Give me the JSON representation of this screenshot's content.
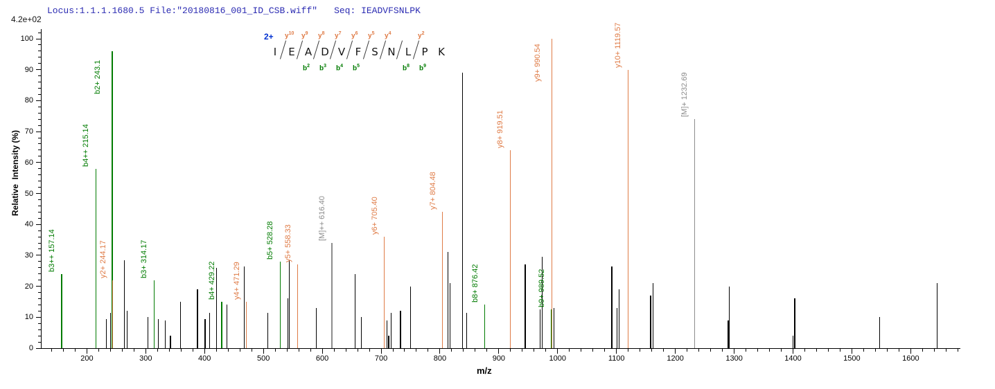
{
  "header": {
    "locus_file": "Locus:1.1.1.1680.5 File:\"20180816_001_ID_CSB.wiff\"",
    "seq": "Seq: IEADVFSNLPK",
    "max_intensity": "4.2e+02"
  },
  "peptide": {
    "charge": "2+",
    "residues": [
      "I",
      "E",
      "A",
      "D",
      "V",
      "F",
      "S",
      "N",
      "L",
      "P",
      "K"
    ],
    "cleavages": [
      {
        "after": 0,
        "y": "y10",
        "b": ""
      },
      {
        "after": 1,
        "y": "y9",
        "b": "b2"
      },
      {
        "after": 2,
        "y": "y8",
        "b": "b3"
      },
      {
        "after": 3,
        "y": "y7",
        "b": "b4"
      },
      {
        "after": 4,
        "y": "y6",
        "b": "b5"
      },
      {
        "after": 5,
        "y": "y5",
        "b": ""
      },
      {
        "after": 6,
        "y": "y4",
        "b": ""
      },
      {
        "after": 7,
        "y": "",
        "b": "b8"
      },
      {
        "after": 8,
        "y": "y2",
        "b": "b9"
      }
    ]
  },
  "chart_data": {
    "type": "bar",
    "subtype": "ms2-fragment-spectrum",
    "title": "",
    "xlabel": "m/z",
    "ylabel": "Relative  Intensity (%)",
    "xlim": [
      123,
      1682
    ],
    "ylim": [
      0,
      100
    ],
    "x_major_ticks": [
      200,
      300,
      400,
      500,
      600,
      700,
      800,
      900,
      1000,
      1100,
      1200,
      1300,
      1400,
      1500,
      1600
    ],
    "x_minor_step": 20,
    "y_major_ticks": [
      0,
      10,
      20,
      30,
      40,
      50,
      60,
      70,
      80,
      90,
      100
    ],
    "y_minor_step": 2,
    "grid": false,
    "series_colors": {
      "b": "#007b00",
      "y": "#df7b46",
      "precursor": "#8c8c8c",
      "unassigned": "#000000"
    },
    "peaks": [
      {
        "mz": 157.14,
        "intensity": 24,
        "series": "b",
        "label": "b3++ 157.14"
      },
      {
        "mz": 215.14,
        "intensity": 58,
        "series": "b",
        "label": "b4++ 215.14"
      },
      {
        "mz": 233,
        "intensity": 9.5,
        "series": "unassigned"
      },
      {
        "mz": 240,
        "intensity": 11.5,
        "series": "unassigned"
      },
      {
        "mz": 243.1,
        "intensity": 96,
        "series": "b",
        "label": "b2+ 243.1"
      },
      {
        "mz": 244.17,
        "intensity": 22,
        "series": "y",
        "label": "y2+ 244.17"
      },
      {
        "mz": 264,
        "intensity": 28.5,
        "series": "unassigned"
      },
      {
        "mz": 268,
        "intensity": 12,
        "series": "unassigned"
      },
      {
        "mz": 304,
        "intensity": 10,
        "series": "unassigned"
      },
      {
        "mz": 314.17,
        "intensity": 22,
        "series": "b",
        "label": "b3+ 314.17"
      },
      {
        "mz": 321,
        "intensity": 9.5,
        "series": "unassigned"
      },
      {
        "mz": 333,
        "intensity": 9,
        "series": "unassigned"
      },
      {
        "mz": 342,
        "intensity": 4,
        "series": "unassigned"
      },
      {
        "mz": 359,
        "intensity": 15,
        "series": "unassigned"
      },
      {
        "mz": 388,
        "intensity": 19,
        "series": "unassigned"
      },
      {
        "mz": 401,
        "intensity": 9.5,
        "series": "unassigned"
      },
      {
        "mz": 409,
        "intensity": 11.5,
        "series": "unassigned"
      },
      {
        "mz": 420,
        "intensity": 26,
        "series": "unassigned"
      },
      {
        "mz": 429.22,
        "intensity": 15,
        "series": "b",
        "label": "b4+ 429.22"
      },
      {
        "mz": 438,
        "intensity": 14,
        "series": "unassigned"
      },
      {
        "mz": 467,
        "intensity": 26.5,
        "series": "unassigned"
      },
      {
        "mz": 471.29,
        "intensity": 15,
        "series": "y",
        "label": "y4+ 471.29"
      },
      {
        "mz": 507,
        "intensity": 11.5,
        "series": "unassigned"
      },
      {
        "mz": 528.28,
        "intensity": 28,
        "series": "b",
        "label": "b5+ 528.28"
      },
      {
        "mz": 542,
        "intensity": 16,
        "series": "unassigned"
      },
      {
        "mz": 544,
        "intensity": 28.5,
        "series": "unassigned"
      },
      {
        "mz": 558.33,
        "intensity": 27,
        "series": "y",
        "label": "y5+ 558.33"
      },
      {
        "mz": 590,
        "intensity": 13,
        "series": "unassigned"
      },
      {
        "mz": 616.4,
        "intensity": 34,
        "series": "precursor",
        "label": "[M]++ 616.40"
      },
      {
        "mz": 656,
        "intensity": 24,
        "series": "unassigned"
      },
      {
        "mz": 666,
        "intensity": 10,
        "series": "unassigned"
      },
      {
        "mz": 705.4,
        "intensity": 36,
        "series": "y",
        "label": "y6+ 705.40"
      },
      {
        "mz": 710,
        "intensity": 9,
        "series": "unassigned"
      },
      {
        "mz": 713,
        "intensity": 4,
        "series": "unassigned"
      },
      {
        "mz": 717,
        "intensity": 11.5,
        "series": "unassigned"
      },
      {
        "mz": 733,
        "intensity": 12,
        "series": "unassigned"
      },
      {
        "mz": 750,
        "intensity": 20,
        "series": "unassigned"
      },
      {
        "mz": 804.48,
        "intensity": 44,
        "series": "y",
        "label": "y7+ 804.48"
      },
      {
        "mz": 814,
        "intensity": 31,
        "series": "unassigned"
      },
      {
        "mz": 817,
        "intensity": 21,
        "series": "unassigned"
      },
      {
        "mz": 838,
        "intensity": 89,
        "series": "unassigned"
      },
      {
        "mz": 845,
        "intensity": 11.5,
        "series": "unassigned"
      },
      {
        "mz": 876.42,
        "intensity": 14,
        "series": "b",
        "label": "b8+ 876.42"
      },
      {
        "mz": 919.51,
        "intensity": 64,
        "series": "y",
        "label": "y8+ 919.51"
      },
      {
        "mz": 945,
        "intensity": 27,
        "series": "unassigned"
      },
      {
        "mz": 970,
        "intensity": 12.5,
        "series": "unassigned"
      },
      {
        "mz": 974,
        "intensity": 29.5,
        "series": "unassigned"
      },
      {
        "mz": 989.52,
        "intensity": 12.5,
        "series": "b",
        "label": "b9+ 989.52"
      },
      {
        "mz": 990.54,
        "intensity": 100,
        "series": "y",
        "label": "y9+ 990.54"
      },
      {
        "mz": 994,
        "intensity": 13,
        "series": "unassigned"
      },
      {
        "mz": 1092,
        "intensity": 26.5,
        "series": "unassigned"
      },
      {
        "mz": 1101,
        "intensity": 13,
        "series": "unassigned"
      },
      {
        "mz": 1104,
        "intensity": 19,
        "series": "unassigned"
      },
      {
        "mz": 1119.57,
        "intensity": 90,
        "series": "y",
        "label": "y10+ 1119.57"
      },
      {
        "mz": 1158,
        "intensity": 17,
        "series": "unassigned"
      },
      {
        "mz": 1162,
        "intensity": 21,
        "series": "unassigned"
      },
      {
        "mz": 1232.69,
        "intensity": 74,
        "series": "precursor",
        "label": "[M]+ 1232.69"
      },
      {
        "mz": 1290,
        "intensity": 9,
        "series": "unassigned"
      },
      {
        "mz": 1292,
        "intensity": 20,
        "series": "unassigned"
      },
      {
        "mz": 1400,
        "intensity": 4,
        "series": "unassigned"
      },
      {
        "mz": 1403,
        "intensity": 16,
        "series": "unassigned"
      },
      {
        "mz": 1547,
        "intensity": 10,
        "series": "unassigned"
      },
      {
        "mz": 1645,
        "intensity": 21,
        "series": "unassigned"
      }
    ]
  }
}
